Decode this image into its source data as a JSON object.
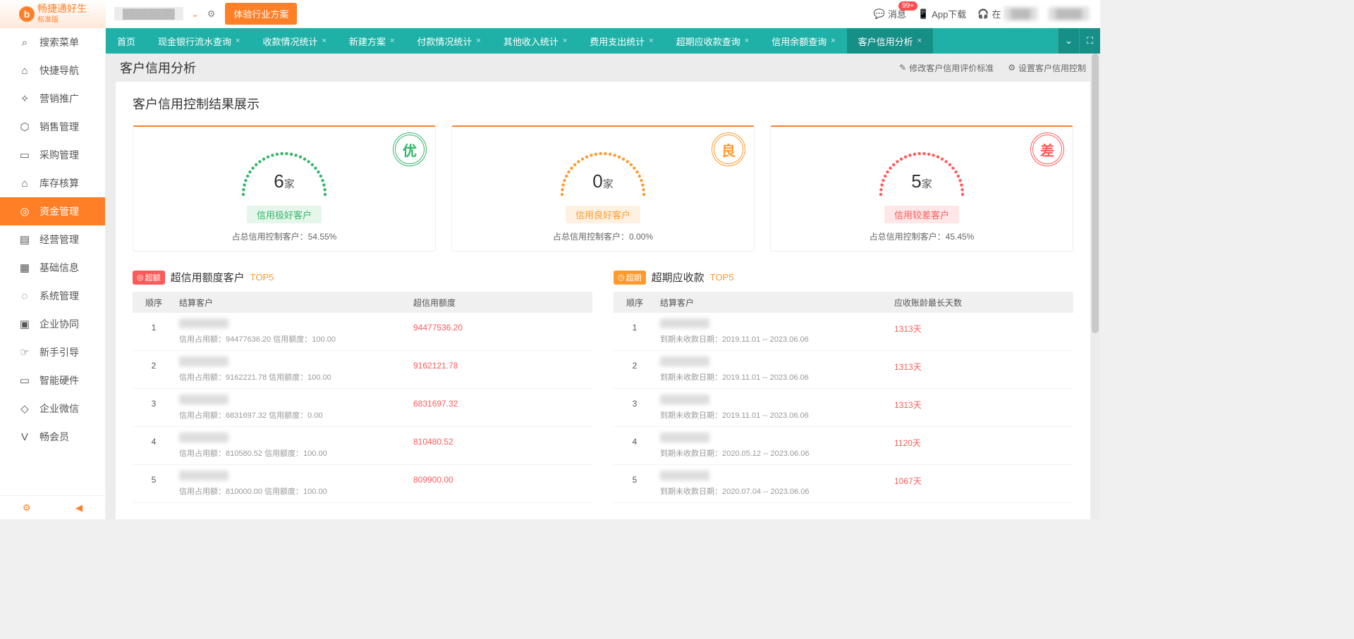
{
  "header": {
    "logo_text": "畅捷通好生",
    "logo_sub": "标准版",
    "cta": "体验行业方案",
    "messages": "消息",
    "messages_badge": "99+",
    "app_download": "App下载",
    "online_prefix": "在"
  },
  "tabs": [
    {
      "label": "首页",
      "closable": false,
      "active": false
    },
    {
      "label": "现金银行流水查询",
      "closable": true,
      "active": false
    },
    {
      "label": "收款情况统计",
      "closable": true,
      "active": false
    },
    {
      "label": "新建方案",
      "closable": true,
      "active": false
    },
    {
      "label": "付款情况统计",
      "closable": true,
      "active": false
    },
    {
      "label": "其他收入统计",
      "closable": true,
      "active": false
    },
    {
      "label": "费用支出统计",
      "closable": true,
      "active": false
    },
    {
      "label": "超期应收款查询",
      "closable": true,
      "active": false
    },
    {
      "label": "信用余额查询",
      "closable": true,
      "active": false
    },
    {
      "label": "客户信用分析",
      "closable": true,
      "active": true
    }
  ],
  "sidebar": [
    {
      "icon": "⌕",
      "label": "搜索菜单"
    },
    {
      "icon": "⌂",
      "label": "快捷导航"
    },
    {
      "icon": "✧",
      "label": "营销推广"
    },
    {
      "icon": "⬡",
      "label": "销售管理"
    },
    {
      "icon": "▭",
      "label": "采购管理"
    },
    {
      "icon": "⌂",
      "label": "库存核算"
    },
    {
      "icon": "◎",
      "label": "资金管理",
      "active": true
    },
    {
      "icon": "▤",
      "label": "经营管理"
    },
    {
      "icon": "▦",
      "label": "基础信息"
    },
    {
      "icon": "◌",
      "label": "系统管理"
    },
    {
      "icon": "▣",
      "label": "企业协同"
    },
    {
      "icon": "☞",
      "label": "新手引导"
    },
    {
      "icon": "▭",
      "label": "智能硬件"
    },
    {
      "icon": "◇",
      "label": "企业微信"
    },
    {
      "icon": "V",
      "label": "畅会员"
    }
  ],
  "page": {
    "title": "客户信用分析",
    "link1": "修改客户信用评价标准",
    "link2": "设置客户信用控制",
    "panel_title": "客户信用控制结果展示"
  },
  "cards": [
    {
      "stamp": "优",
      "count": 6,
      "unit": "家",
      "label": "信用极好客户",
      "pct_label": "占总信用控制客户：",
      "pct": "54.55%",
      "color": "#34b56a",
      "key": "good"
    },
    {
      "stamp": "良",
      "count": 0,
      "unit": "家",
      "label": "信用良好客户",
      "pct_label": "占总信用控制客户：",
      "pct": "0.00%",
      "color": "#ff9a2e",
      "key": "ok"
    },
    {
      "stamp": "差",
      "count": 5,
      "unit": "家",
      "label": "信用较差客户",
      "pct_label": "占总信用控制客户：",
      "pct": "45.45%",
      "color": "#ff5a5a",
      "key": "bad"
    }
  ],
  "top5_left": {
    "tag": "超额",
    "title": "超信用额度客户",
    "suffix": "TOP5",
    "cols": [
      "顺序",
      "结算客户",
      "超信用额度"
    ],
    "rows": [
      {
        "idx": 1,
        "sub": "信用占用额：94477636.20   信用额度：100.00",
        "val": "94477536.20"
      },
      {
        "idx": 2,
        "sub": "信用占用额：9162221.78   信用额度：100.00",
        "val": "9162121.78"
      },
      {
        "idx": 3,
        "sub": "信用占用额：6831697.32   信用额度：0.00",
        "val": "6831697.32"
      },
      {
        "idx": 4,
        "sub": "信用占用额：810580.52   信用额度：100.00",
        "val": "810480.52"
      },
      {
        "idx": 5,
        "sub": "信用占用额：810000.00   信用额度：100.00",
        "val": "809900.00"
      }
    ]
  },
  "top5_right": {
    "tag": "超期",
    "title": "超期应收款",
    "suffix": "TOP5",
    "cols": [
      "顺序",
      "结算客户",
      "应收账龄最长天数"
    ],
    "rows": [
      {
        "idx": 1,
        "sub": "到期未收款日期：2019.11.01 -- 2023.06.06",
        "val": "1313天"
      },
      {
        "idx": 2,
        "sub": "到期未收款日期：2019.11.01 -- 2023.06.06",
        "val": "1313天"
      },
      {
        "idx": 3,
        "sub": "到期未收款日期：2019.11.01 -- 2023.06.06",
        "val": "1313天"
      },
      {
        "idx": 4,
        "sub": "到期未收款日期：2020.05.12 -- 2023.06.06",
        "val": "1120天"
      },
      {
        "idx": 5,
        "sub": "到期未收款日期：2020.07.04 -- 2023.06.06",
        "val": "1067天"
      }
    ]
  }
}
